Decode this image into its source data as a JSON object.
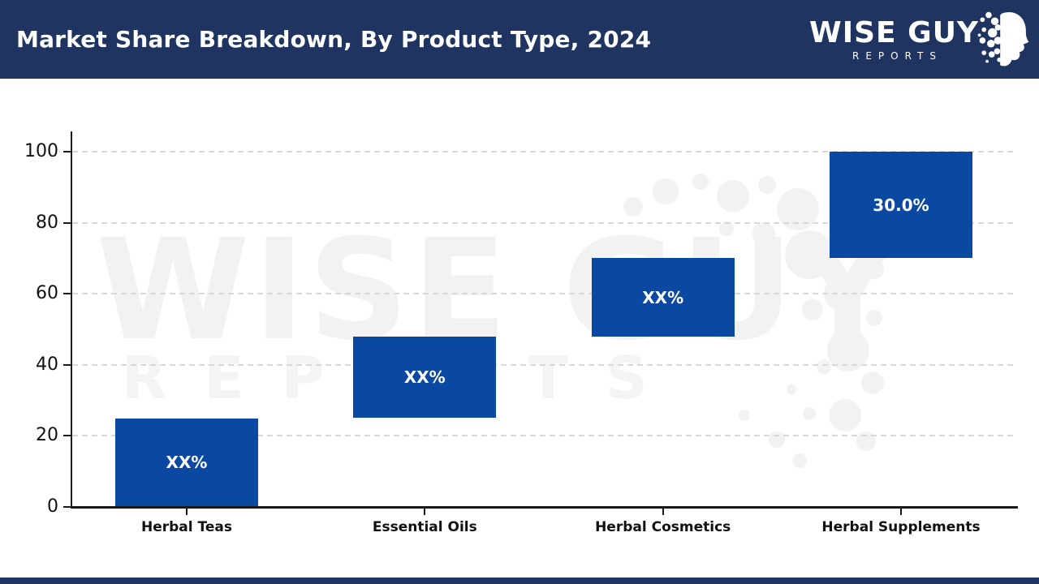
{
  "header": {
    "title": "Market Share Breakdown, By Product Type, 2024",
    "logo": {
      "line1": "WISE GUY",
      "line2": "REPORTS"
    }
  },
  "watermark": {
    "line1": "WISE GUY",
    "line2": "REPORTS"
  },
  "chart_data": {
    "type": "bar",
    "variant": "waterfall",
    "title": "Market Share Breakdown, By Product Type, 2024",
    "categories": [
      "Herbal Teas",
      "Essential Oils",
      "Herbal Cosmetics",
      "Herbal Supplements"
    ],
    "bars": [
      {
        "category": "Herbal Teas",
        "start": 0,
        "end": 25,
        "label": "XX%"
      },
      {
        "category": "Essential Oils",
        "start": 25,
        "end": 48,
        "label": "XX%"
      },
      {
        "category": "Herbal Cosmetics",
        "start": 48,
        "end": 70,
        "label": "XX%"
      },
      {
        "category": "Herbal Supplements",
        "start": 70,
        "end": 100,
        "label": "30.0%"
      }
    ],
    "yticks": [
      0,
      20,
      40,
      60,
      80,
      100
    ],
    "ylim": [
      0,
      106
    ],
    "grid": "horizontal-dashed",
    "legend": "none",
    "xlabel": "",
    "ylabel": "",
    "bar_color": "#0A48A1",
    "header_color": "#1F3461",
    "gridline_color": "#d8d8d8"
  }
}
